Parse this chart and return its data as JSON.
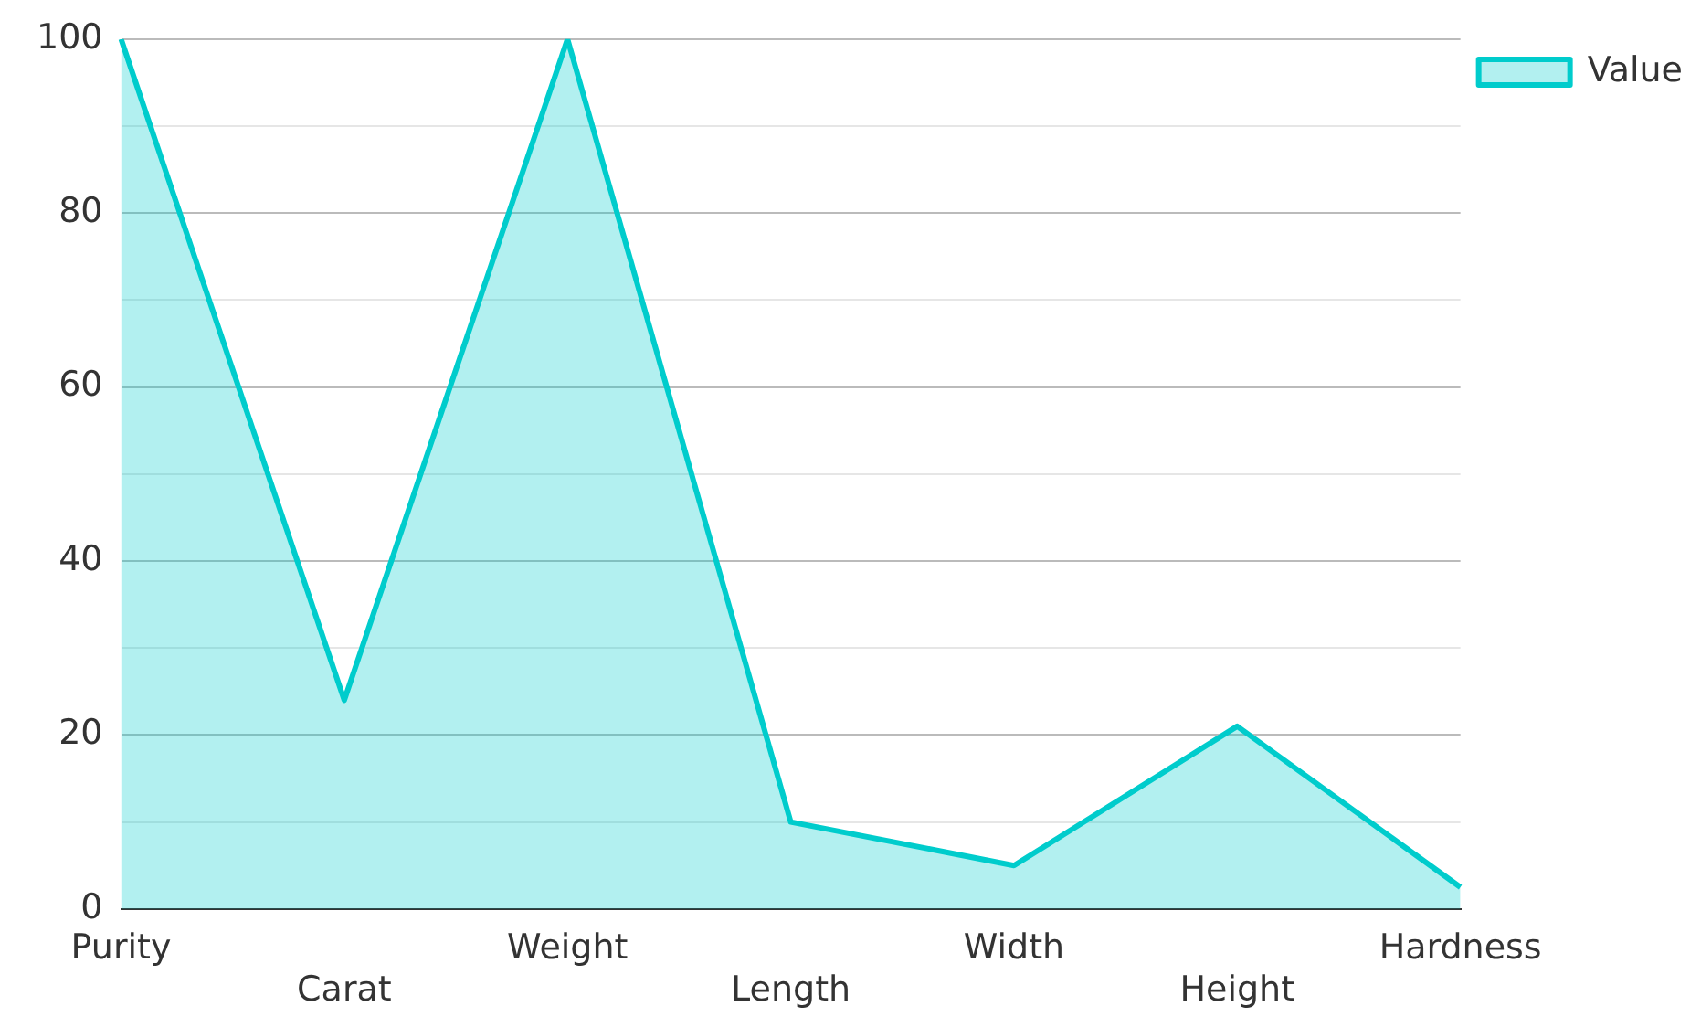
{
  "chart_data": {
    "type": "area",
    "categories": [
      "Purity",
      "Carat",
      "Weight",
      "Length",
      "Width",
      "Height",
      "Hardness"
    ],
    "series": [
      {
        "name": "Value",
        "color": "#00cccc",
        "values": [
          100,
          24,
          100,
          10,
          5,
          21,
          2.5
        ]
      }
    ],
    "ylim": [
      0,
      100
    ],
    "yticks": [
      0,
      {
        "value": 10,
        "label": null
      },
      20,
      {
        "value": 30,
        "label": null
      },
      40,
      {
        "value": 50,
        "label": null
      },
      60,
      {
        "value": 70,
        "label": null
      },
      80,
      {
        "value": 90,
        "label": null
      },
      100
    ],
    "grid": "y",
    "legend": "top right"
  }
}
